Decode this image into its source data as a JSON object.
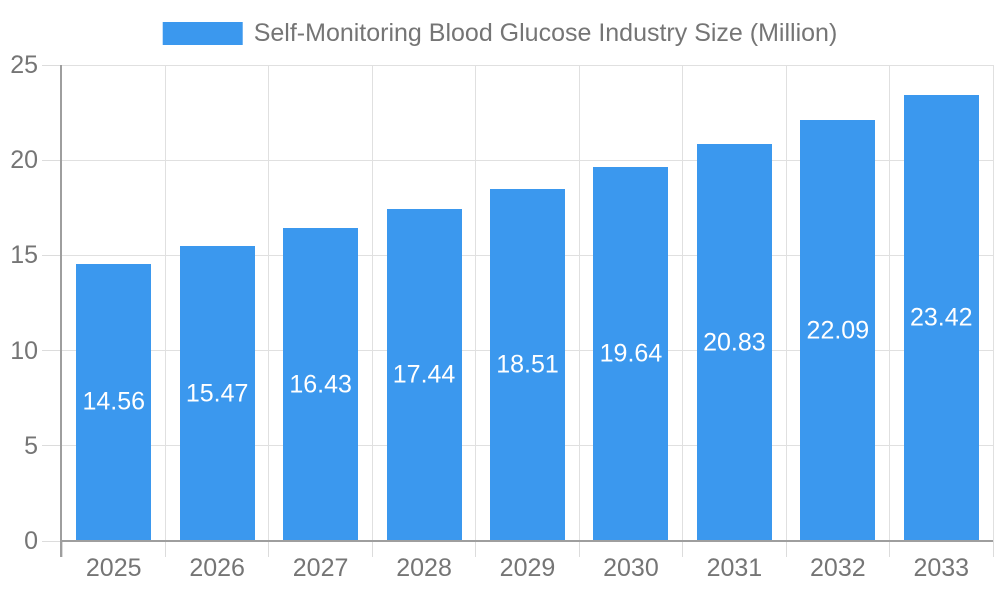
{
  "legend": {
    "label": "Self-Monitoring Blood Glucose Industry Size (Million)"
  },
  "colors": {
    "bar": "#3b98ee",
    "axis": "#9e9e9e",
    "grid": "#e0e0e0",
    "tick": "#dcdcdc",
    "text": "#757575",
    "value_text": "#ffffff"
  },
  "chart_data": {
    "type": "bar",
    "title": "Self-Monitoring Blood Glucose Industry Size (Million)",
    "categories": [
      "2025",
      "2026",
      "2027",
      "2028",
      "2029",
      "2030",
      "2031",
      "2032",
      "2033"
    ],
    "values": [
      14.56,
      15.47,
      16.43,
      17.44,
      18.51,
      19.64,
      20.83,
      22.09,
      23.42
    ],
    "value_decimals": 2,
    "xlabel": "",
    "ylabel": "",
    "ylim": [
      0,
      25
    ],
    "yticks": [
      0,
      5,
      10,
      15,
      20,
      25
    ],
    "grid": true,
    "legend_position": "top",
    "value_labels_position": "bar-center"
  }
}
